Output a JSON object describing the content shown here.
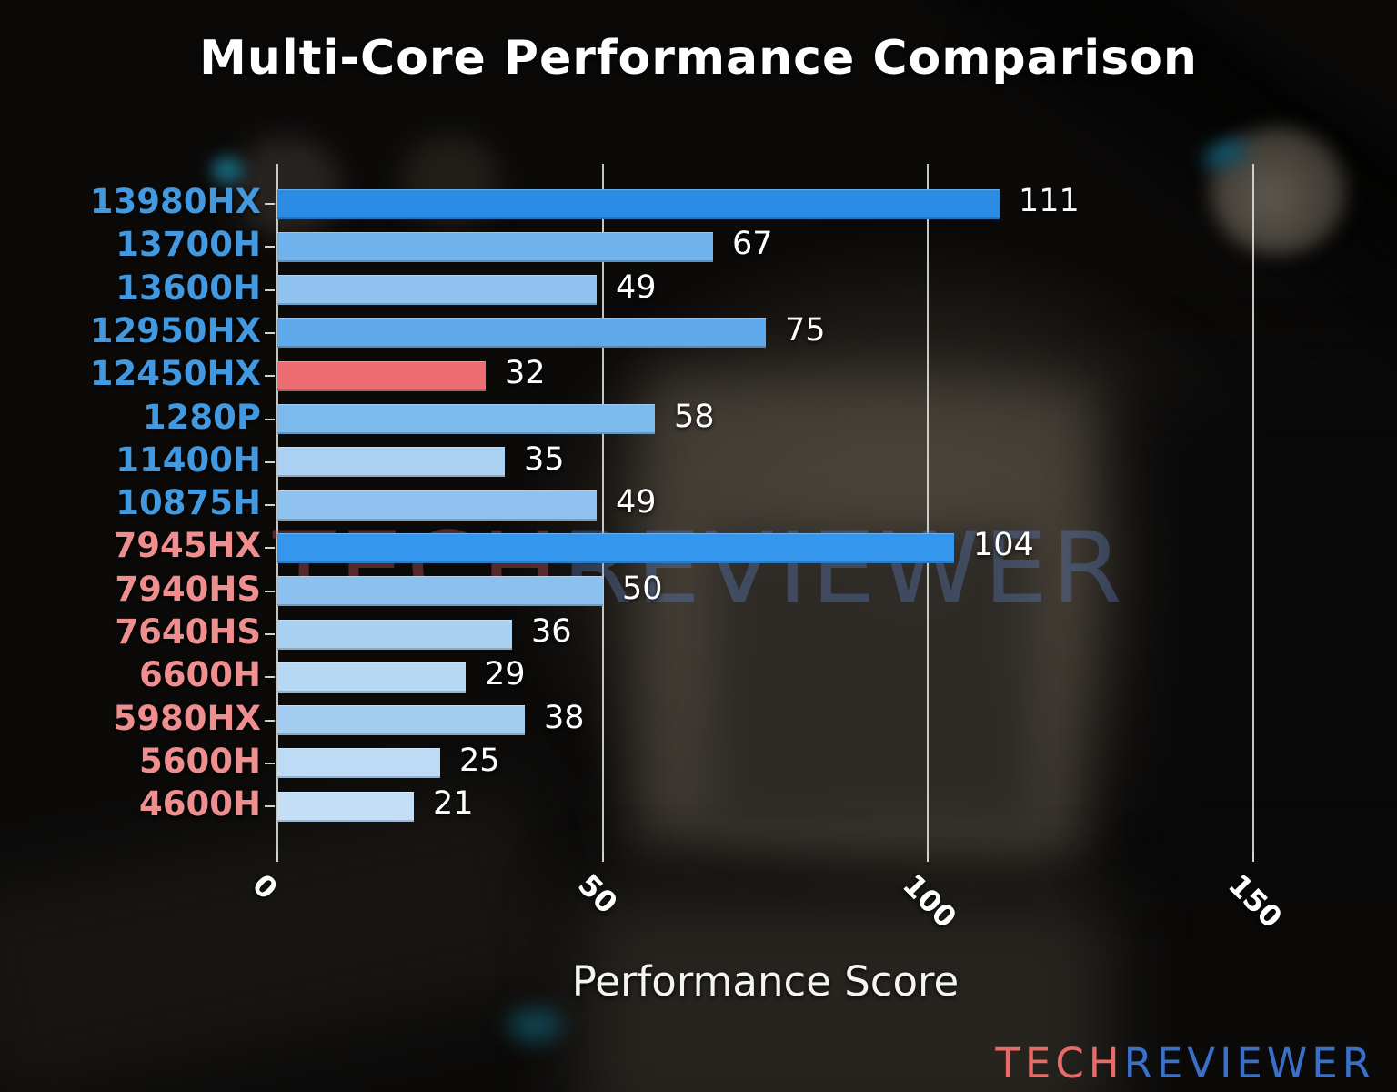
{
  "chart_data": {
    "type": "bar",
    "orientation": "horizontal",
    "title": "Multi-Core Performance Comparison",
    "xlabel": "Performance Score",
    "xlim": [
      0,
      150
    ],
    "xticks": [
      0,
      50,
      100,
      150
    ],
    "grid": true,
    "legend": "none",
    "categories": [
      "13980HX",
      "13700H",
      "13600H",
      "12950HX",
      "12450HX",
      "1280P",
      "11400H",
      "10875H",
      "7945HX",
      "7940HS",
      "7640HS",
      "6600H",
      "5980HX",
      "5600H",
      "4600H"
    ],
    "values": [
      111,
      67,
      49,
      75,
      32,
      58,
      35,
      49,
      104,
      50,
      36,
      29,
      38,
      25,
      21
    ],
    "bar_colors": [
      "#2b8ce6",
      "#6fb2ec",
      "#8fc2ee",
      "#60a9ea",
      "#ee6d72",
      "#7cb9ed",
      "#aad1f1",
      "#8fc2ee",
      "#3496ec",
      "#8cc0ee",
      "#a8d0f1",
      "#b6d8f3",
      "#a3cdf0",
      "#bddbf4",
      "#c4dff5"
    ],
    "label_colors": [
      "#4299e0",
      "#4299e0",
      "#4299e0",
      "#4299e0",
      "#4299e0",
      "#4299e0",
      "#4299e0",
      "#4299e0",
      "#ef8e8f",
      "#ef8e8f",
      "#ef8e8f",
      "#ef8e8f",
      "#ef8e8f",
      "#ef8e8f",
      "#ef8e8f"
    ],
    "highlighted_bar": "12450HX",
    "highlight_color": "#ee6d72"
  },
  "colors": {
    "title_text": "#ffffff",
    "value_text": "#ffffff",
    "tick_text": "#ffffff",
    "gridline": "#e4e7e4",
    "background": "#0b0a09"
  },
  "watermark": {
    "part1": "TECH",
    "part2": "REVIEWER",
    "part1_color": "rgba(185,85,90,0.42)",
    "part2_color": "rgba(100,140,215,0.32)"
  },
  "logo": {
    "part1": "TECH",
    "part2": "REVIEWER",
    "part1_color": "#e96a66",
    "part2_color": "#3a70c8"
  }
}
